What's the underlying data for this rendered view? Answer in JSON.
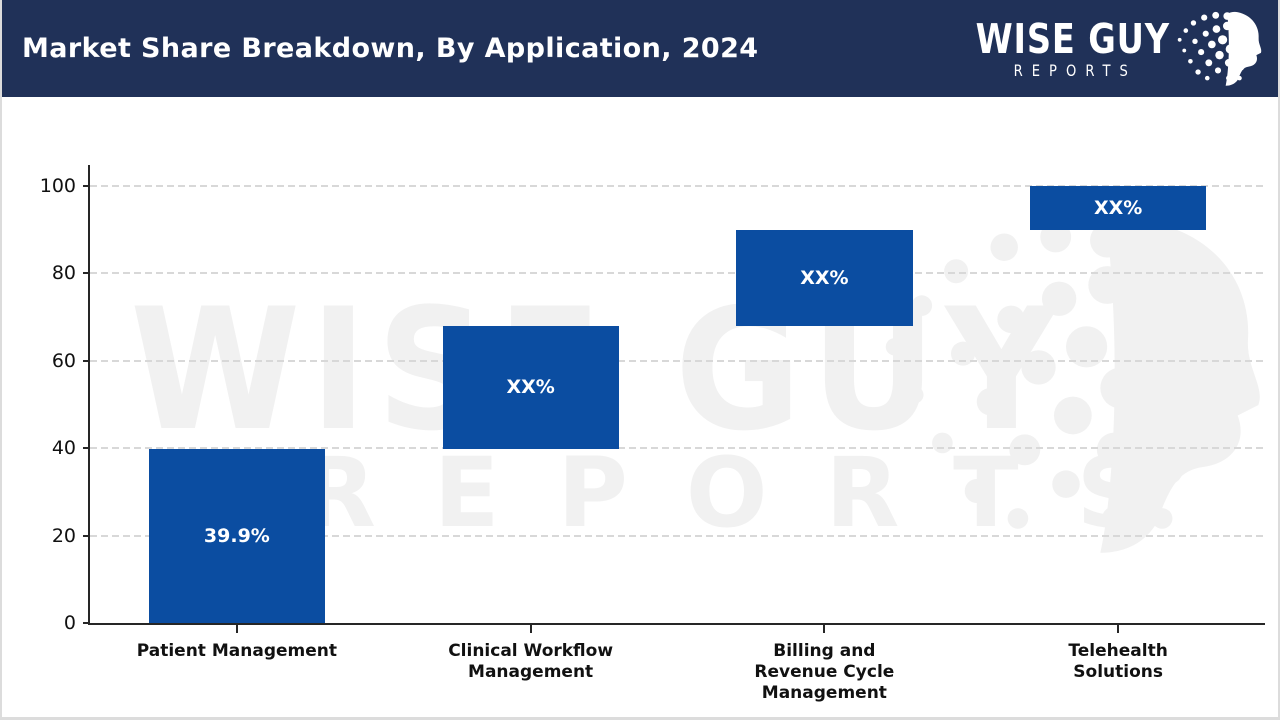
{
  "header": {
    "title": "Market Share Breakdown, By Application, 2024",
    "logo": {
      "primary": "WISE GUY",
      "secondary": "REPORTS"
    }
  },
  "watermark": {
    "primary": "WISE GUY",
    "secondary": "REPORTS"
  },
  "colors": {
    "header_bg": "#203158",
    "header_text": "#ffffff",
    "bar": "#0b4da1",
    "bar_label": "#ffffff",
    "gridline": "#d8d8d8",
    "axis": "#262626",
    "text": "#111111",
    "watermark": "#f1f1f1"
  },
  "chart_data": {
    "type": "bar",
    "subtype": "waterfall",
    "title": "Market Share Breakdown, By Application, 2024",
    "categories": [
      "Patient Management",
      "Clinical Workflow\nManagement",
      "Billing and\nRevenue Cycle\nManagement",
      "Telehealth\nSolutions"
    ],
    "series": [
      {
        "name": "Market share (%)",
        "segments": [
          {
            "category": "Patient Management",
            "start": 0,
            "end": 39.9,
            "label": "39.9%"
          },
          {
            "category": "Clinical Workflow Management",
            "start": 39.9,
            "end": 68,
            "label": "XX%"
          },
          {
            "category": "Billing and Revenue Cycle Management",
            "start": 68,
            "end": 90,
            "label": "XX%"
          },
          {
            "category": "Telehealth Solutions",
            "start": 90,
            "end": 100,
            "label": "XX%"
          }
        ]
      }
    ],
    "yticks": [
      0,
      20,
      40,
      60,
      80,
      100
    ],
    "ylim": [
      0,
      104
    ],
    "xlabel": "",
    "ylabel": "",
    "grid": "horizontal-dashed",
    "legend": "none"
  }
}
